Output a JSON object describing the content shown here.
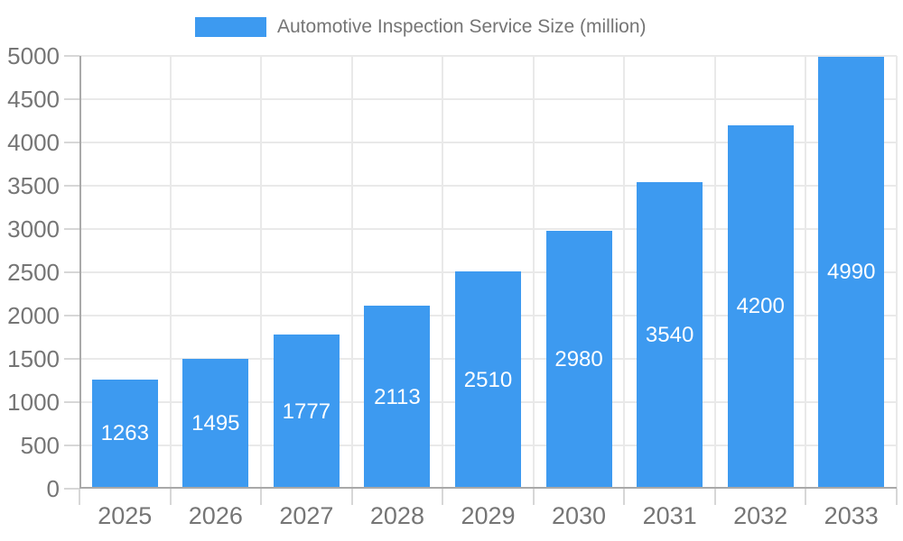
{
  "chart_data": {
    "type": "bar",
    "title": "Automotive Inspection Service Size (million)",
    "categories": [
      "2025",
      "2026",
      "2027",
      "2028",
      "2029",
      "2030",
      "2031",
      "2032",
      "2033"
    ],
    "series": [
      {
        "name": "Automotive Inspection Service Size (million)",
        "values": [
          1263,
          1495,
          1777,
          2113,
          2510,
          2980,
          3540,
          4200,
          4990
        ]
      }
    ],
    "xlabel": "",
    "ylabel": "",
    "ylim": [
      0,
      5000
    ],
    "ytick_step": 500,
    "yticks": [
      0,
      500,
      1000,
      1500,
      2000,
      2500,
      3000,
      3500,
      4000,
      4500,
      5000
    ],
    "grid": true,
    "legend_position": "top",
    "bar_label_position": "inside-center",
    "colors": {
      "bar": "#3d9af0",
      "bar_label": "#ffffff",
      "axis_line": "#a9a9a9",
      "tick": "#d7d7d7",
      "gridline": "#e9e9e9",
      "axis_label": "#757575",
      "legend_text": "#757575",
      "background": "#ffffff"
    }
  }
}
